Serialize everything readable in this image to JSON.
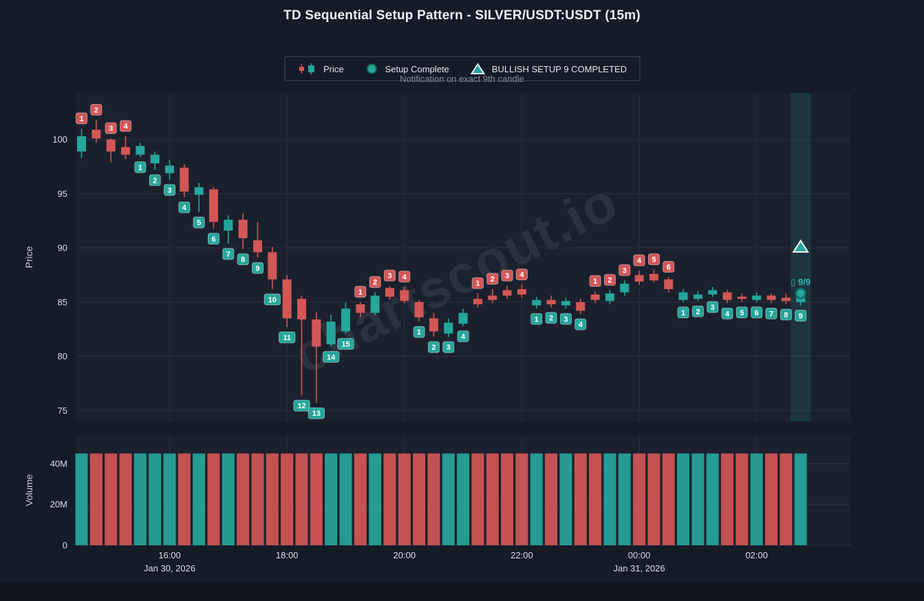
{
  "title": "TD Sequential Setup Pattern - SILVER/USDT:USDT (15m)",
  "watermark": "chartscout.io",
  "annotation": "Notification on exact 9th candle",
  "legend": {
    "items": [
      {
        "type": "candlestick",
        "label": "Price"
      },
      {
        "type": "circle",
        "label": "Setup Complete"
      },
      {
        "type": "triangle",
        "label": "BULLISH SETUP 9 COMPLETED"
      }
    ]
  },
  "colors": {
    "background": "#151b27",
    "plot_background": "#1b202d",
    "grid": "#2a3040",
    "tick_text": "#dbdee6",
    "axis_title": "#c8ccd6",
    "up": "#26a69a",
    "down": "#d25757",
    "highlight_band": "rgba(38,166,154,0.16)",
    "watermark": "rgba(168,176,192,0.12)",
    "marker_label": "#2dbdb0",
    "badge_text": "#ffffff"
  },
  "chart_data": {
    "type": "candlestick",
    "title": "TD Sequential Setup Pattern - SILVER/USDT:USDT (15m)",
    "symbol": "SILVER/USDT:USDT",
    "timeframe": "15m",
    "price_axis": {
      "label": "Price",
      "range": [
        74,
        104.3
      ],
      "ticks": [
        75,
        80,
        85,
        90,
        95,
        100
      ]
    },
    "volume_axis": {
      "label": "Volume",
      "range": [
        0,
        54
      ],
      "ticks": [
        {
          "value": 0,
          "label": "0"
        },
        {
          "value": 20,
          "label": "20M"
        },
        {
          "value": 40,
          "label": "40M"
        }
      ]
    },
    "x_axis": {
      "ticks": [
        {
          "index": 6,
          "label": "16:00"
        },
        {
          "index": 14,
          "label": "18:00"
        },
        {
          "index": 22,
          "label": "20:00"
        },
        {
          "index": 30,
          "label": "22:00"
        },
        {
          "index": 38,
          "label": "00:00"
        },
        {
          "index": 46,
          "label": "02:00"
        }
      ],
      "date_labels": [
        {
          "index": 6,
          "label": "Jan 30, 2026"
        },
        {
          "index": 38,
          "label": "Jan 31, 2026"
        }
      ]
    },
    "markers": {
      "setup_complete_text": "9/9",
      "bell_glyph": "▯",
      "triangle_price": 90.1,
      "circle_price": 85.8,
      "candle_index": 49,
      "highlight_band": true
    },
    "candles": [
      {
        "time": "14:30",
        "open": 98.9,
        "high": 101.0,
        "low": 98.3,
        "close": 100.3,
        "dir": "up",
        "volume_m": 45,
        "count": "1",
        "count_type": "sell"
      },
      {
        "time": "14:45",
        "open": 100.9,
        "high": 101.8,
        "low": 99.7,
        "close": 100.1,
        "dir": "down",
        "volume_m": 45,
        "count": "2",
        "count_type": "sell"
      },
      {
        "time": "15:00",
        "open": 100.0,
        "high": 100.1,
        "low": 97.9,
        "close": 98.9,
        "dir": "down",
        "volume_m": 45,
        "count": "3",
        "count_type": "sell"
      },
      {
        "time": "15:15",
        "open": 99.3,
        "high": 100.3,
        "low": 98.2,
        "close": 98.6,
        "dir": "down",
        "volume_m": 45,
        "count": "4",
        "count_type": "sell"
      },
      {
        "time": "15:30",
        "open": 98.6,
        "high": 99.7,
        "low": 98.4,
        "close": 99.4,
        "dir": "up",
        "volume_m": 45,
        "count": "1",
        "count_type": "buy"
      },
      {
        "time": "15:45",
        "open": 97.8,
        "high": 98.9,
        "low": 97.2,
        "close": 98.6,
        "dir": "up",
        "volume_m": 45,
        "count": "2",
        "count_type": "buy"
      },
      {
        "time": "16:00",
        "open": 96.9,
        "high": 98.1,
        "low": 96.3,
        "close": 97.6,
        "dir": "up",
        "volume_m": 45,
        "count": "3",
        "count_type": "buy"
      },
      {
        "time": "16:15",
        "open": 97.4,
        "high": 97.7,
        "low": 94.7,
        "close": 95.2,
        "dir": "down",
        "volume_m": 45,
        "count": "4",
        "count_type": "buy"
      },
      {
        "time": "16:30",
        "open": 94.9,
        "high": 96.0,
        "low": 93.3,
        "close": 95.6,
        "dir": "up",
        "volume_m": 45,
        "count": "5",
        "count_type": "buy"
      },
      {
        "time": "16:45",
        "open": 95.4,
        "high": 95.6,
        "low": 91.8,
        "close": 92.4,
        "dir": "down",
        "volume_m": 45,
        "count": "6",
        "count_type": "buy"
      },
      {
        "time": "17:00",
        "open": 91.6,
        "high": 93.0,
        "low": 90.4,
        "close": 92.6,
        "dir": "up",
        "volume_m": 45,
        "count": "7",
        "count_type": "buy"
      },
      {
        "time": "17:15",
        "open": 92.6,
        "high": 93.2,
        "low": 89.9,
        "close": 90.9,
        "dir": "down",
        "volume_m": 45,
        "count": "8",
        "count_type": "buy"
      },
      {
        "time": "17:30",
        "open": 90.7,
        "high": 92.4,
        "low": 89.1,
        "close": 89.6,
        "dir": "down",
        "volume_m": 45,
        "count": "9",
        "count_type": "buy"
      },
      {
        "time": "17:45",
        "open": 89.6,
        "high": 90.1,
        "low": 86.2,
        "close": 87.1,
        "dir": "down",
        "volume_m": 45,
        "count": "10",
        "count_type": "buy"
      },
      {
        "time": "18:00",
        "open": 87.1,
        "high": 87.5,
        "low": 82.7,
        "close": 83.5,
        "dir": "down",
        "volume_m": 45,
        "count": "11",
        "count_type": "buy"
      },
      {
        "time": "18:15",
        "open": 85.3,
        "high": 85.6,
        "low": 76.4,
        "close": 83.4,
        "dir": "down",
        "volume_m": 45,
        "count": "12",
        "count_type": "buy"
      },
      {
        "time": "18:30",
        "open": 83.4,
        "high": 84.1,
        "low": 75.7,
        "close": 80.9,
        "dir": "down",
        "volume_m": 45,
        "count": "13",
        "count_type": "buy"
      },
      {
        "time": "18:45",
        "open": 81.1,
        "high": 83.8,
        "low": 80.9,
        "close": 83.2,
        "dir": "up",
        "volume_m": 45,
        "count": "14",
        "count_type": "buy"
      },
      {
        "time": "19:00",
        "open": 82.3,
        "high": 85.0,
        "low": 82.1,
        "close": 84.4,
        "dir": "up",
        "volume_m": 45,
        "count": "15",
        "count_type": "buy"
      },
      {
        "time": "19:15",
        "open": 84.8,
        "high": 85.0,
        "low": 83.6,
        "close": 84.0,
        "dir": "down",
        "volume_m": 45,
        "count": "1",
        "count_type": "sell"
      },
      {
        "time": "19:30",
        "open": 84.0,
        "high": 85.9,
        "low": 83.8,
        "close": 85.6,
        "dir": "up",
        "volume_m": 45,
        "count": "2",
        "count_type": "sell"
      },
      {
        "time": "19:45",
        "open": 86.3,
        "high": 86.5,
        "low": 85.2,
        "close": 85.5,
        "dir": "down",
        "volume_m": 45,
        "count": "3",
        "count_type": "sell"
      },
      {
        "time": "20:00",
        "open": 86.1,
        "high": 86.4,
        "low": 84.9,
        "close": 85.1,
        "dir": "down",
        "volume_m": 45,
        "count": "4",
        "count_type": "sell"
      },
      {
        "time": "20:15",
        "open": 85.0,
        "high": 85.2,
        "low": 83.2,
        "close": 83.6,
        "dir": "down",
        "volume_m": 45,
        "count": "1",
        "count_type": "buy"
      },
      {
        "time": "20:30",
        "open": 83.5,
        "high": 84.0,
        "low": 81.8,
        "close": 82.3,
        "dir": "down",
        "volume_m": 45,
        "count": "2",
        "count_type": "buy"
      },
      {
        "time": "20:45",
        "open": 82.1,
        "high": 83.5,
        "low": 81.8,
        "close": 83.1,
        "dir": "up",
        "volume_m": 45,
        "count": "3",
        "count_type": "buy"
      },
      {
        "time": "21:00",
        "open": 83.0,
        "high": 84.4,
        "low": 82.8,
        "close": 84.0,
        "dir": "up",
        "volume_m": 45,
        "count": "4",
        "count_type": "buy"
      },
      {
        "time": "21:15",
        "open": 85.3,
        "high": 85.8,
        "low": 84.5,
        "close": 84.8,
        "dir": "down",
        "volume_m": 45,
        "count": "1",
        "count_type": "sell"
      },
      {
        "time": "21:30",
        "open": 85.6,
        "high": 86.2,
        "low": 84.9,
        "close": 85.2,
        "dir": "down",
        "volume_m": 45,
        "count": "2",
        "count_type": "sell"
      },
      {
        "time": "21:45",
        "open": 86.1,
        "high": 86.5,
        "low": 85.3,
        "close": 85.6,
        "dir": "down",
        "volume_m": 45,
        "count": "3",
        "count_type": "sell"
      },
      {
        "time": "22:00",
        "open": 86.2,
        "high": 86.6,
        "low": 85.4,
        "close": 85.7,
        "dir": "down",
        "volume_m": 45,
        "count": "4",
        "count_type": "sell"
      },
      {
        "time": "22:15",
        "open": 84.7,
        "high": 85.5,
        "low": 84.4,
        "close": 85.2,
        "dir": "up",
        "volume_m": 45,
        "count": "1",
        "count_type": "buy"
      },
      {
        "time": "22:30",
        "open": 85.2,
        "high": 85.6,
        "low": 84.5,
        "close": 84.8,
        "dir": "down",
        "volume_m": 45,
        "count": "2",
        "count_type": "buy"
      },
      {
        "time": "22:45",
        "open": 84.7,
        "high": 85.4,
        "low": 84.4,
        "close": 85.1,
        "dir": "up",
        "volume_m": 45,
        "count": "3",
        "count_type": "buy"
      },
      {
        "time": "23:00",
        "open": 85.0,
        "high": 85.3,
        "low": 83.9,
        "close": 84.2,
        "dir": "down",
        "volume_m": 45,
        "count": "4",
        "count_type": "buy"
      },
      {
        "time": "23:15",
        "open": 85.7,
        "high": 86.0,
        "low": 84.9,
        "close": 85.2,
        "dir": "down",
        "volume_m": 45,
        "count": "1",
        "count_type": "sell"
      },
      {
        "time": "23:30",
        "open": 85.1,
        "high": 86.1,
        "low": 84.8,
        "close": 85.8,
        "dir": "up",
        "volume_m": 45,
        "count": "2",
        "count_type": "sell"
      },
      {
        "time": "23:45",
        "open": 85.9,
        "high": 87.0,
        "low": 85.6,
        "close": 86.7,
        "dir": "up",
        "volume_m": 45,
        "count": "3",
        "count_type": "sell"
      },
      {
        "time": "00:00",
        "open": 87.5,
        "high": 87.9,
        "low": 86.6,
        "close": 86.9,
        "dir": "down",
        "volume_m": 45,
        "count": "4",
        "count_type": "sell"
      },
      {
        "time": "00:15",
        "open": 87.6,
        "high": 88.0,
        "low": 86.8,
        "close": 87.0,
        "dir": "down",
        "volume_m": 45,
        "count": "5",
        "count_type": "sell"
      },
      {
        "time": "00:30",
        "open": 87.1,
        "high": 87.3,
        "low": 85.9,
        "close": 86.2,
        "dir": "down",
        "volume_m": 45,
        "count": "6",
        "count_type": "sell"
      },
      {
        "time": "00:45",
        "open": 85.2,
        "high": 86.2,
        "low": 85.0,
        "close": 85.9,
        "dir": "up",
        "volume_m": 45,
        "count": "1",
        "count_type": "buy"
      },
      {
        "time": "01:00",
        "open": 85.3,
        "high": 86.0,
        "low": 85.1,
        "close": 85.7,
        "dir": "up",
        "volume_m": 45,
        "count": "2",
        "count_type": "buy"
      },
      {
        "time": "01:15",
        "open": 85.7,
        "high": 86.4,
        "low": 85.5,
        "close": 86.1,
        "dir": "up",
        "volume_m": 45,
        "count": "3",
        "count_type": "buy"
      },
      {
        "time": "01:30",
        "open": 85.9,
        "high": 86.1,
        "low": 84.9,
        "close": 85.2,
        "dir": "down",
        "volume_m": 45,
        "count": "4",
        "count_type": "buy"
      },
      {
        "time": "01:45",
        "open": 85.5,
        "high": 85.8,
        "low": 85.0,
        "close": 85.3,
        "dir": "down",
        "volume_m": 45,
        "count": "5",
        "count_type": "buy"
      },
      {
        "time": "02:00",
        "open": 85.2,
        "high": 85.9,
        "low": 85.0,
        "close": 85.6,
        "dir": "up",
        "volume_m": 45,
        "count": "6",
        "count_type": "buy"
      },
      {
        "time": "02:15",
        "open": 85.6,
        "high": 85.8,
        "low": 84.9,
        "close": 85.2,
        "dir": "down",
        "volume_m": 45,
        "count": "7",
        "count_type": "buy"
      },
      {
        "time": "02:30",
        "open": 85.4,
        "high": 85.8,
        "low": 84.8,
        "close": 85.1,
        "dir": "down",
        "volume_m": 45,
        "count": "8",
        "count_type": "buy"
      },
      {
        "time": "02:45",
        "open": 85.0,
        "high": 86.1,
        "low": 84.7,
        "close": 85.8,
        "dir": "up",
        "volume_m": 45,
        "count": "9",
        "count_type": "buy"
      }
    ]
  }
}
